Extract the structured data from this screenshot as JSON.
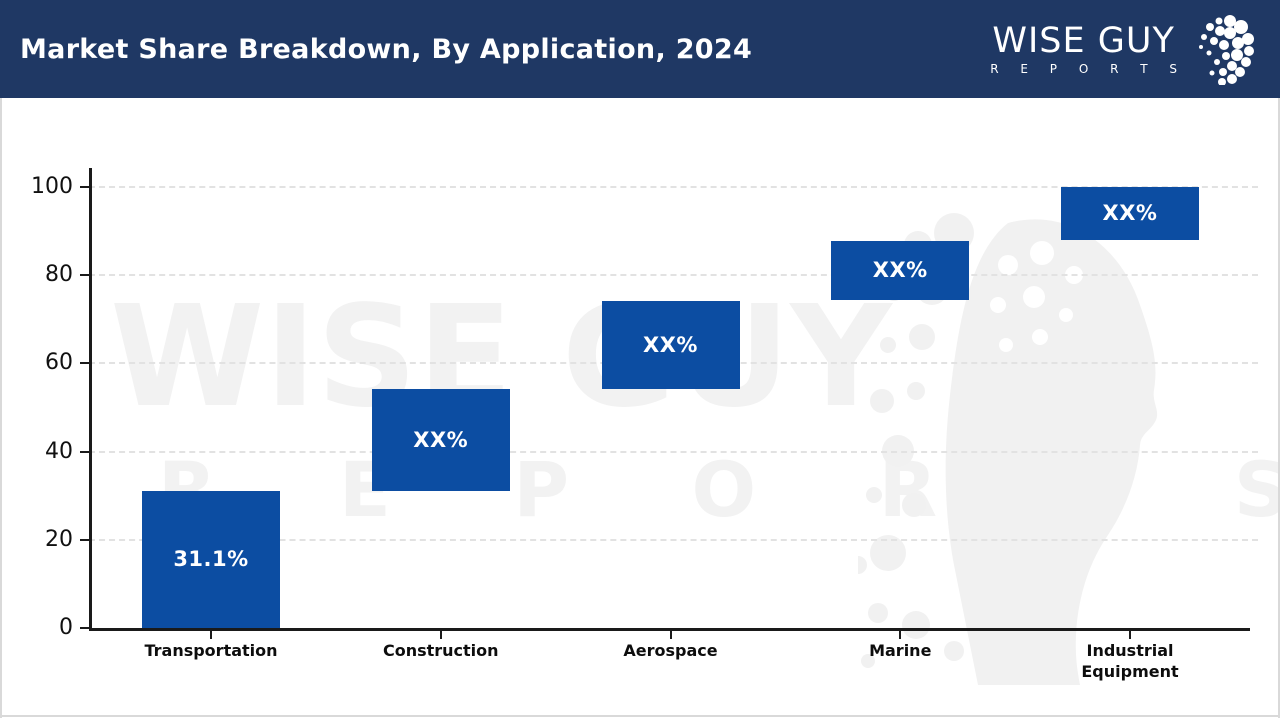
{
  "header": {
    "title": "Market Share Breakdown, By Application, 2024",
    "logo": {
      "line1": "WISE GUY",
      "line2": "R E P O R T S"
    }
  },
  "watermark": {
    "line1": "WISE GUY",
    "line2": "R E P O R T S"
  },
  "colors": {
    "header_bg": "#1f3864",
    "bar": "#0c4da2",
    "grid": "#e2e2e2",
    "axis": "#1a1a1a",
    "watermark": "#f2f2f2"
  },
  "chart_data": {
    "type": "bar",
    "subtype": "waterfall",
    "title": "Market Share Breakdown, By Application, 2024",
    "xlabel": "",
    "ylabel": "",
    "ylim": [
      0,
      105
    ],
    "y_ticks": [
      0,
      20,
      40,
      60,
      80,
      100
    ],
    "grid": "horizontal-dashed",
    "legend": "none",
    "categories": [
      "Transportation",
      "Construction",
      "Aerospace",
      "Marine",
      "Industrial Equipment"
    ],
    "segments": [
      {
        "category": "Transportation",
        "start": 0.0,
        "end": 31.1,
        "label": "31.1%"
      },
      {
        "category": "Construction",
        "start": 31.1,
        "end": 54.1,
        "label": "XX%"
      },
      {
        "category": "Aerospace",
        "start": 54.1,
        "end": 74.1,
        "label": "XX%"
      },
      {
        "category": "Marine",
        "start": 74.4,
        "end": 87.8,
        "label": "XX%"
      },
      {
        "category": "Industrial Equipment",
        "start": 88.0,
        "end": 100.0,
        "label": "XX%"
      }
    ]
  }
}
